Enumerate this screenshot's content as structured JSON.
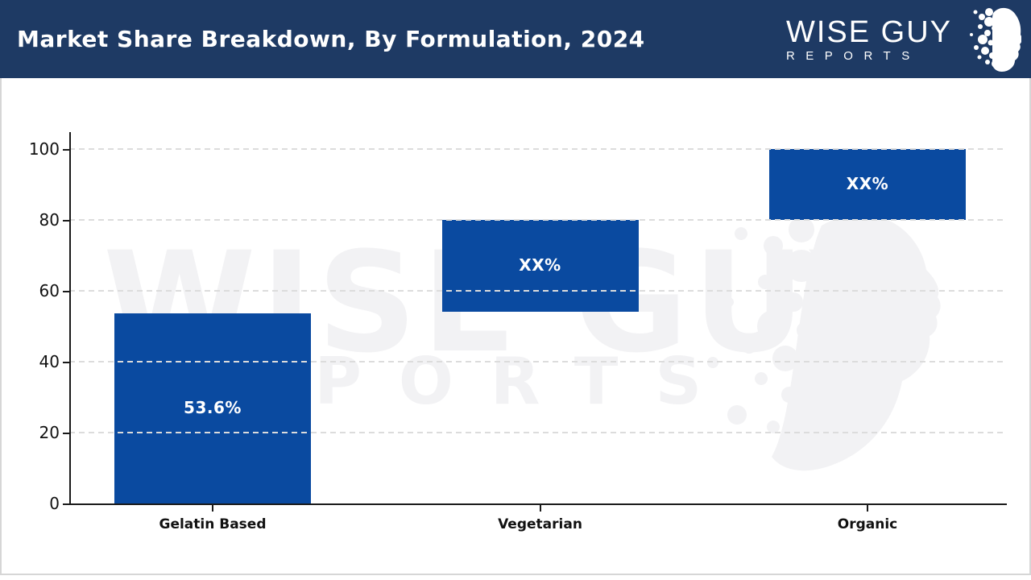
{
  "header": {
    "title": "Market Share Breakdown, By Formulation, 2024",
    "logo": {
      "line1": "WISE GUY",
      "line2": "REPORTS"
    }
  },
  "watermark": {
    "line1": "WISE GUY",
    "line2": "REPORTS"
  },
  "chart_data": {
    "type": "bar",
    "subtype": "floating-segment-waterfall",
    "title": "Market Share Breakdown, By Formulation, 2024",
    "categories": [
      "Gelatin Based",
      "Vegetarian",
      "Organic"
    ],
    "series": [
      {
        "name": "Market Share (%)",
        "segments": [
          {
            "category": "Gelatin Based",
            "from": 0,
            "to": 53.6,
            "label": "53.6%"
          },
          {
            "category": "Vegetarian",
            "from": 54,
            "to": 80,
            "label": "XX%"
          },
          {
            "category": "Organic",
            "from": 80,
            "to": 100,
            "label": "XX%"
          }
        ]
      }
    ],
    "xlabel": "",
    "ylabel": "",
    "yticks": [
      0,
      20,
      40,
      60,
      80,
      100
    ],
    "ylim": [
      0,
      105
    ],
    "grid": "horizontal-dashed",
    "legend": "none",
    "colors": {
      "bar": "#0a4aa0",
      "grid": "#dcdcdc",
      "axis": "#1a1a1a",
      "bar_label": "#ffffff",
      "tick_label": "#111111"
    }
  },
  "colors": {
    "header_bg": "#1e3a64",
    "page_bg": "#ffffff",
    "frame_border": "#d6d6d6",
    "watermark": "#f2f2f4"
  }
}
